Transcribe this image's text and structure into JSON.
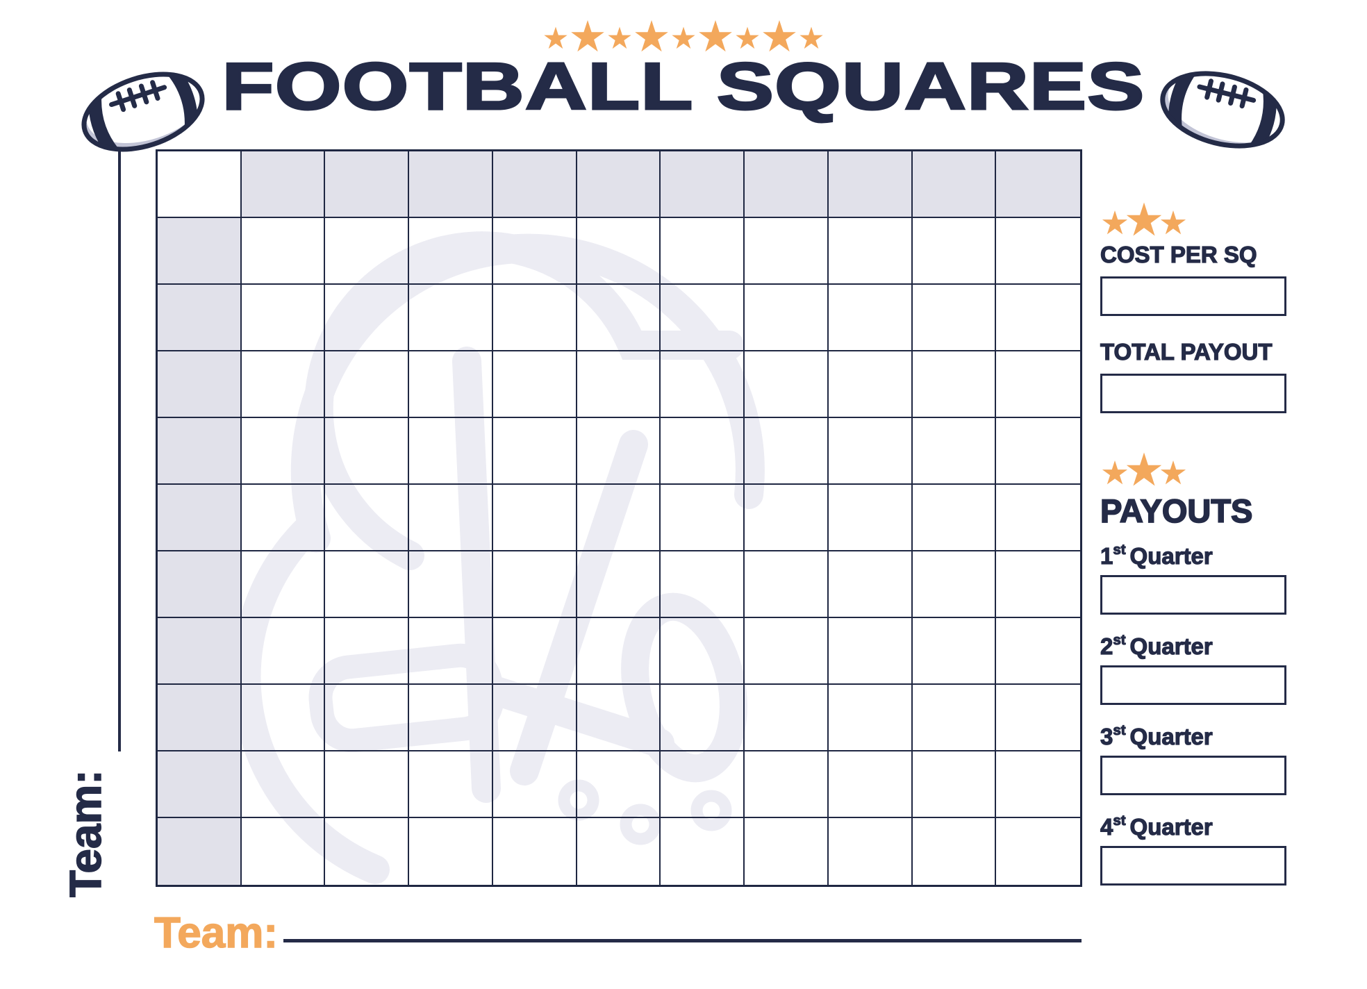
{
  "title": "FOOTBALL SQUARES",
  "team_axis": {
    "left_label": "Team:",
    "bottom_label": "Team:"
  },
  "grid": {
    "rows": 11,
    "cols": 11,
    "header_row_shaded": true,
    "header_col_shaded": true
  },
  "sidebar": {
    "cost_section": {
      "label": "COST PER SQ",
      "value": ""
    },
    "total_section": {
      "label": "TOTAL PAYOUT",
      "value": ""
    },
    "payouts": {
      "heading": "PAYOUTS",
      "quarters": [
        {
          "number": "1",
          "ordinal": "st",
          "word": "Quarter",
          "value": ""
        },
        {
          "number": "2",
          "ordinal": "st",
          "word": "Quarter",
          "value": ""
        },
        {
          "number": "3",
          "ordinal": "st",
          "word": "Quarter",
          "value": ""
        },
        {
          "number": "4",
          "ordinal": "st",
          "word": "Quarter",
          "value": ""
        }
      ]
    }
  },
  "icons": {
    "header_star_row": "star-icon x9",
    "sidebar_star_groups": "star-icon x3 (two groups)",
    "footballs": "football-icon left and right",
    "watermark": "football-helmet-watermark"
  },
  "colors": {
    "navy": "#242B47",
    "grid_line": "#1F2742",
    "orange": "#F3A85C",
    "cell_gray": "#E1E1EA",
    "watermark_gray": "#ECECF3",
    "background": "#FFFFFF"
  }
}
